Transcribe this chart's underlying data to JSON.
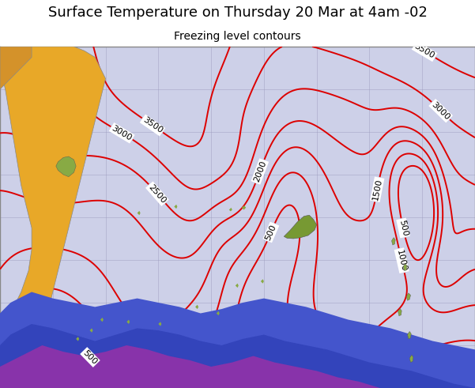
{
  "title": "Surface Temperature on Thursday 20 Mar at 4am -02",
  "subtitle": "Freezing level contours",
  "title_fontsize": 13,
  "subtitle_fontsize": 10,
  "ocean_color": "#cdd0e8",
  "contour_color": "#dd0000",
  "contour_linewidth": 1.4,
  "contour_label_fontsize": 8,
  "grid_color": "#9999bb",
  "grid_alpha": 0.6,
  "xlim": [
    -65,
    -20
  ],
  "ylim": [
    -62,
    -46
  ],
  "figsize": [
    6.01,
    4.91
  ],
  "dpi": 100,
  "contour_levels": [
    500,
    1000,
    1500,
    2000,
    2500,
    3000,
    3500
  ],
  "border_color": "#888888",
  "fig_bg": "#ffffff",
  "header_bg": "#ffffff"
}
